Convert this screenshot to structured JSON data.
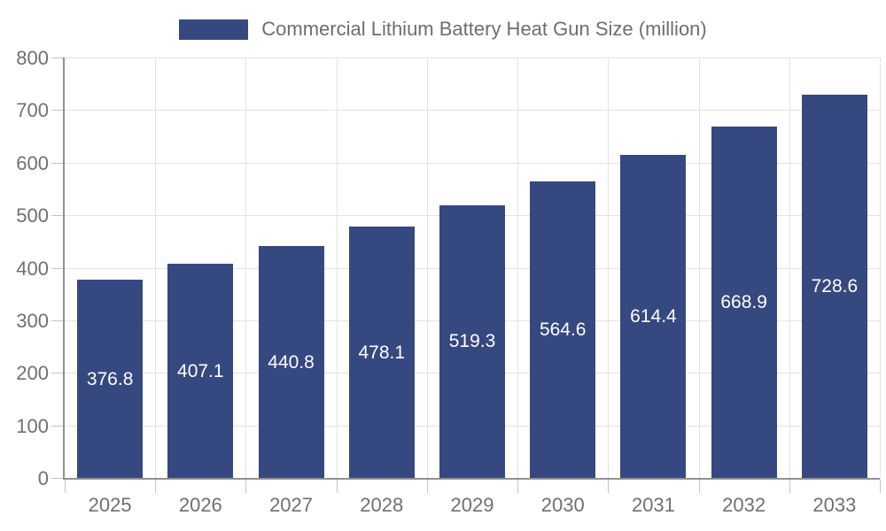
{
  "chart_data": {
    "type": "bar",
    "title": "Commercial Lithium Battery Heat Gun Size (million)",
    "categories": [
      "2025",
      "2026",
      "2027",
      "2028",
      "2029",
      "2030",
      "2031",
      "2032",
      "2033"
    ],
    "series": [
      {
        "name": "Commercial Lithium Battery Heat Gun Size (million)",
        "values": [
          376.8,
          407.1,
          440.8,
          478.1,
          519.3,
          564.6,
          614.4,
          668.9,
          728.6
        ]
      }
    ],
    "value_labels": [
      "376.8",
      "407.1",
      "440.8",
      "478.1",
      "519.3",
      "564.6",
      "614.4",
      "668.9",
      "728.6"
    ],
    "xlabel": "",
    "ylabel": "",
    "ylim": [
      0,
      800
    ],
    "yticks": [
      0,
      100,
      200,
      300,
      400,
      500,
      600,
      700,
      800
    ],
    "grid": true,
    "legend_position": "top",
    "value_label_position": "inside-center",
    "colors": {
      "bar": "#364880",
      "value_text": "#ffffff",
      "axis_line": "#929292",
      "tick": "#c4c4c4",
      "gridline": "#e3e3e3",
      "axis_text": "#707070",
      "legend_text": "#6e6e6e",
      "background": "#ffffff"
    }
  }
}
